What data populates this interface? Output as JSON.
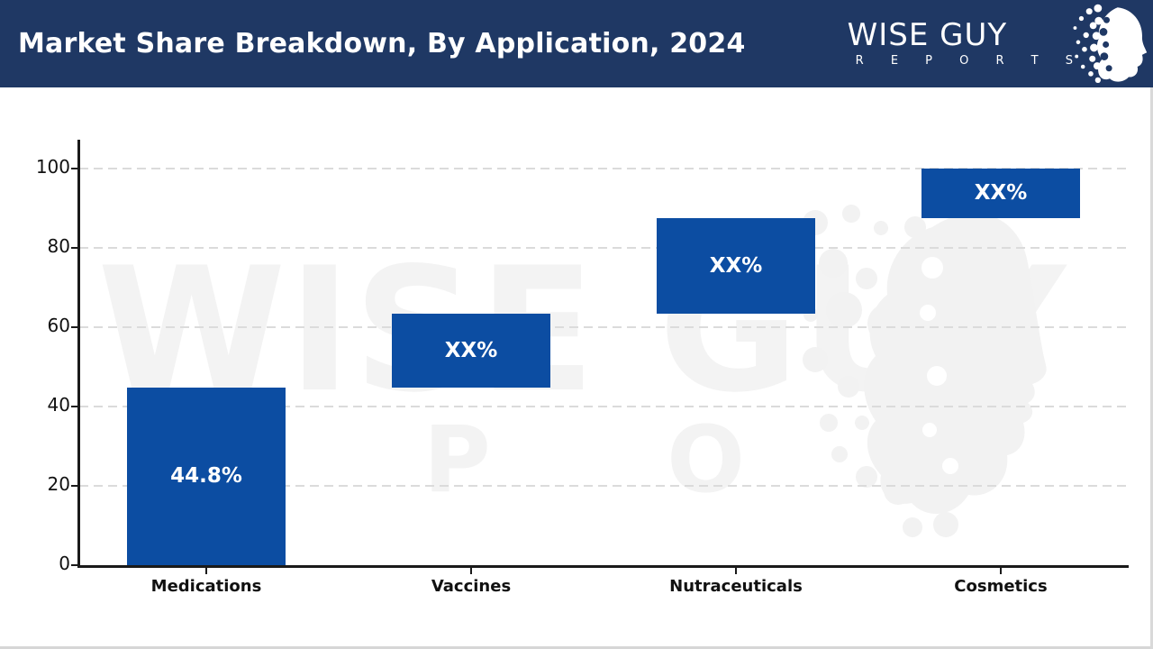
{
  "header": {
    "title": "Market Share Breakdown, By Application, 2024",
    "logo": {
      "name": "WISE GUY",
      "sub": "R E P O R T S"
    }
  },
  "watermark": {
    "line1": "WISE GUY",
    "line2": "P O R T S"
  },
  "colors": {
    "header_bg": "#1F3864",
    "bar": "#0C4DA2",
    "grid": "#DBDBDB",
    "axis": "#1A1A1A",
    "watermark": "#F3F3F3",
    "bar_label": "#FFFFFF"
  },
  "chart_data": {
    "type": "bar",
    "subtype": "waterfall",
    "title": "Market Share Breakdown, By Application, 2024",
    "categories": [
      "Medications",
      "Vaccines",
      "Nutraceuticals",
      "Cosmetics"
    ],
    "series": [
      {
        "name": "Market share (%)",
        "segments": [
          {
            "category": "Medications",
            "start": 0,
            "end": 44.8,
            "label": "44.8%"
          },
          {
            "category": "Vaccines",
            "start": 44.8,
            "end": 63.3,
            "label": "XX%"
          },
          {
            "category": "Nutraceuticals",
            "start": 63.3,
            "end": 87.6,
            "label": "XX%"
          },
          {
            "category": "Cosmetics",
            "start": 87.6,
            "end": 100,
            "label": "XX%"
          }
        ]
      }
    ],
    "ylim": [
      0,
      100
    ],
    "yticks": [
      0,
      20,
      40,
      60,
      80,
      100
    ],
    "xlabel": "",
    "ylabel": "",
    "grid": "horizontal-dashed",
    "legend": "none",
    "bar_color": "#0C4DA2",
    "bar_label_color": "#FFFFFF"
  }
}
